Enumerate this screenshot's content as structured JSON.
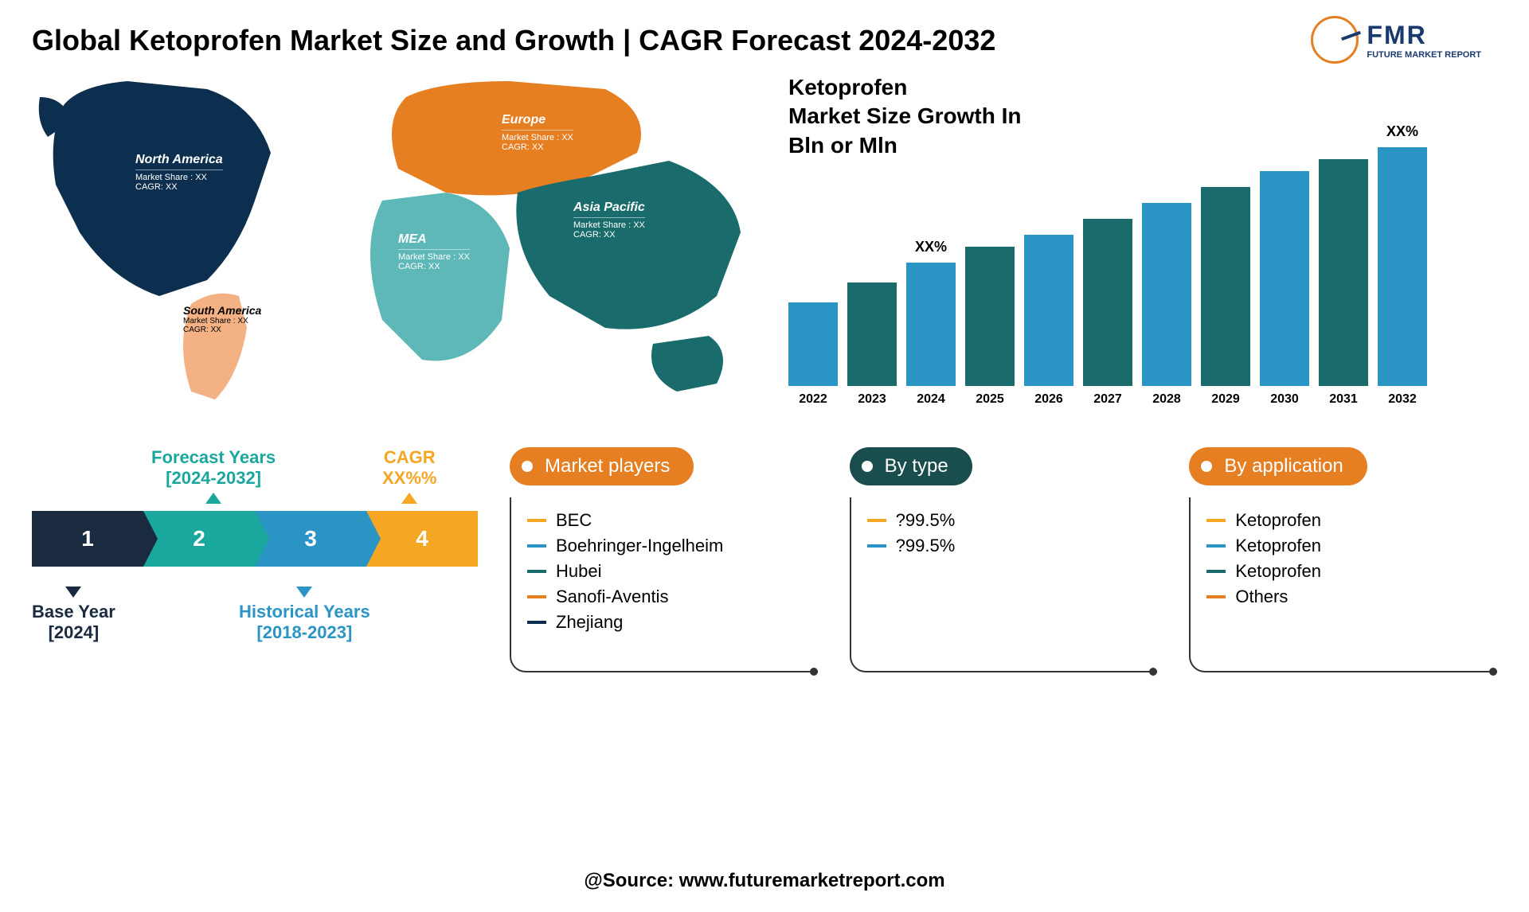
{
  "title": "Global Ketoprofen  Market Size and Growth | CAGR Forecast 2024-2032",
  "logo": {
    "main": "FMR",
    "sub": "FUTURE MARKET REPORT"
  },
  "map": {
    "regions": [
      {
        "name": "North America",
        "share": "Market Share : XX",
        "cagr": "CAGR: XX",
        "color": "#0d2f4f"
      },
      {
        "name": "South America",
        "share": "Market Share : XX",
        "cagr": "CAGR: XX",
        "color": "#f4b183"
      },
      {
        "name": "Europe",
        "share": "Market Share : XX",
        "cagr": "CAGR: XX",
        "color": "#e67e22"
      },
      {
        "name": "MEA",
        "share": "Market Share : XX",
        "cagr": "CAGR: XX",
        "color": "#5eb8b8"
      },
      {
        "name": "Asia Pacific",
        "share": "Market Share : XX",
        "cagr": "CAGR: XX",
        "color": "#1a6b6b"
      }
    ]
  },
  "bar_chart": {
    "title": "Ketoprofen\nMarket Size Growth In\nBln or Mln",
    "categories": [
      "2022",
      "2023",
      "2024",
      "2025",
      "2026",
      "2027",
      "2028",
      "2029",
      "2030",
      "2031",
      "2032"
    ],
    "values": [
      105,
      130,
      155,
      175,
      190,
      210,
      230,
      250,
      270,
      285,
      300
    ],
    "colors": [
      "#2a95c5",
      "#1a6b6b",
      "#2a95c5",
      "#1a6b6b",
      "#2a95c5",
      "#1a6b6b",
      "#2a95c5",
      "#1a6b6b",
      "#2a95c5",
      "#1a6b6b",
      "#2a95c5"
    ],
    "notes": {
      "2": "XX%",
      "10": "XX%"
    },
    "label_fontsize": 16,
    "title_fontsize": 28
  },
  "timeline": {
    "forecast_label": "Forecast Years",
    "forecast_range": "[2024-2032]",
    "forecast_color": "#1aa89e",
    "cagr_label": "CAGR",
    "cagr_value": "XX%%",
    "cagr_color": "#f5a623",
    "base_label": "Base Year",
    "base_range": "[2024]",
    "base_color": "#1a2b3f",
    "hist_label": "Historical Years",
    "hist_range": "[2018-2023]",
    "hist_color": "#2a95c5",
    "segments": [
      {
        "num": "1",
        "color": "#1a2b3f"
      },
      {
        "num": "2",
        "color": "#1aa89e"
      },
      {
        "num": "3",
        "color": "#2a95c5"
      },
      {
        "num": "4",
        "color": "#f5a623"
      }
    ]
  },
  "cols": [
    {
      "pill": "Market players",
      "pill_color": "#e67e22",
      "items": [
        {
          "label": "BEC",
          "swatch": "#f5a623"
        },
        {
          "label": "Boehringer-Ingelheim",
          "swatch": "#2a95c5"
        },
        {
          "label": "Hubei",
          "swatch": "#1a6b6b"
        },
        {
          "label": "Sanofi-Aventis",
          "swatch": "#e67e22"
        },
        {
          "label": "Zhejiang",
          "swatch": "#0d2f4f"
        }
      ]
    },
    {
      "pill": "By type",
      "pill_color": "#1a4d4d",
      "items": [
        {
          "label": "?99.5%",
          "swatch": "#f5a623"
        },
        {
          "label": "?99.5%",
          "swatch": "#2a95c5"
        }
      ]
    },
    {
      "pill": "By application",
      "pill_color": "#e67e22",
      "items": [
        {
          "label": "Ketoprofen",
          "swatch": "#f5a623"
        },
        {
          "label": "Ketoprofen",
          "swatch": "#2a95c5"
        },
        {
          "label": "Ketoprofen",
          "swatch": "#1a6b6b"
        },
        {
          "label": "Others",
          "swatch": "#e67e22"
        }
      ]
    }
  ],
  "source": "@Source: www.futuremarketreport.com"
}
